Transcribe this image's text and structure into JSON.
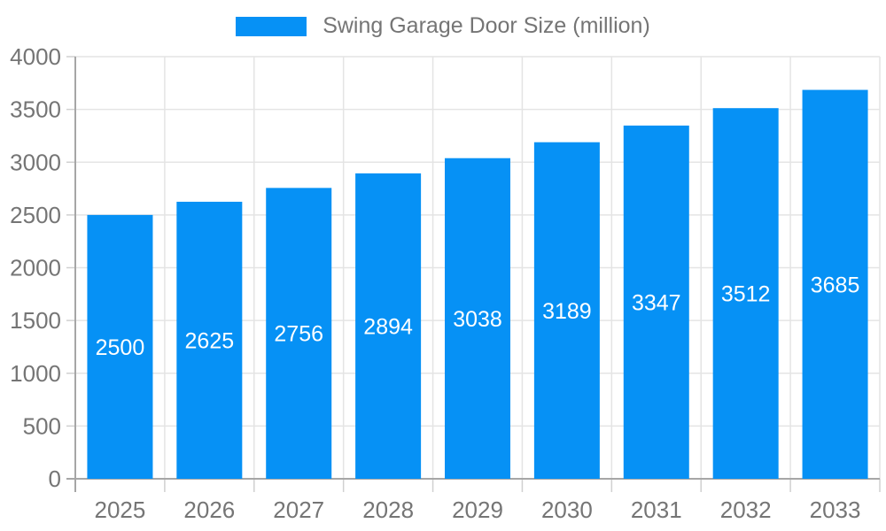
{
  "legend": {
    "label": "Swing Garage Door Size (million)"
  },
  "chart_data": {
    "type": "bar",
    "title": "Swing Garage Door Size (million)",
    "series_name": "Swing Garage Door Size (million)",
    "categories": [
      "2025",
      "2026",
      "2027",
      "2028",
      "2029",
      "2030",
      "2031",
      "2032",
      "2033"
    ],
    "values": [
      2500,
      2625,
      2756,
      2894,
      3038,
      3189,
      3347,
      3512,
      3685
    ],
    "xlabel": "",
    "ylabel": "",
    "ylim": [
      0,
      4000
    ],
    "ytick_step": 500,
    "ytick_labels": [
      "0",
      "500",
      "1000",
      "1500",
      "2000",
      "2500",
      "3000",
      "3500",
      "4000"
    ],
    "grid": true,
    "legend_position": "top",
    "value_labels_inside_bars": true,
    "bar_color": "#0691f5",
    "value_label_color": "#ffffff",
    "axis_text_color": "#757575",
    "grid_color": "#e4e4e4",
    "tick_color": "#d0d0d0",
    "axis_line_color": "#a6a6a6",
    "background_color": "#ffffff"
  }
}
